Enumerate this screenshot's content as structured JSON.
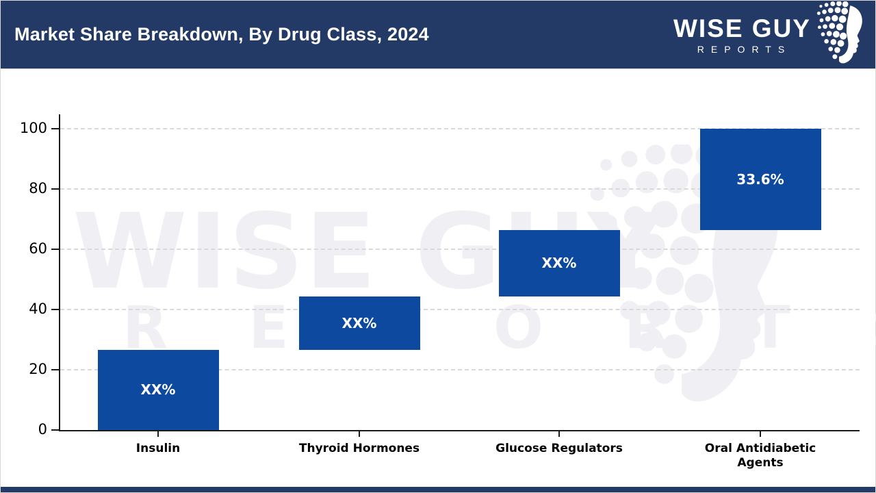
{
  "header": {
    "title": "Market Share Breakdown, By Drug Class, 2024",
    "logo": {
      "line1": "WISE GUY",
      "line2": "REPORTS"
    }
  },
  "watermark": {
    "line1": "WISE GUY",
    "line2": "R E P O R T S"
  },
  "colors": {
    "header_bg": "#233a66",
    "bar_fill": "#0d4a9f",
    "grid": "#d9d9d9",
    "watermark": "#f0f0f4",
    "axis": "#1a1a1a"
  },
  "chart_data": {
    "type": "bar",
    "subtype": "waterfall",
    "title": "Market Share Breakdown, By Drug Class, 2024",
    "categories": [
      "Insulin",
      "Thyroid Hormones",
      "Glucose Regulators",
      "Oral Antidiabetic Agents"
    ],
    "segments": [
      {
        "category": "Insulin",
        "start": 0,
        "end": 26.6,
        "size": 26.6,
        "label": "XX%"
      },
      {
        "category": "Thyroid Hormones",
        "start": 26.6,
        "end": 44.3,
        "size": 17.7,
        "label": "XX%"
      },
      {
        "category": "Glucose Regulators",
        "start": 44.3,
        "end": 66.4,
        "size": 22.1,
        "label": "XX%"
      },
      {
        "category": "Oral Antidiabetic Agents",
        "start": 66.4,
        "end": 100,
        "size": 33.6,
        "label": "33.6%"
      }
    ],
    "xlabel": "",
    "ylabel": "",
    "ylim": [
      0,
      100
    ],
    "yticks": [
      0,
      20,
      40,
      60,
      80,
      100
    ],
    "grid": "horizontal-dashed",
    "legend": "none"
  }
}
